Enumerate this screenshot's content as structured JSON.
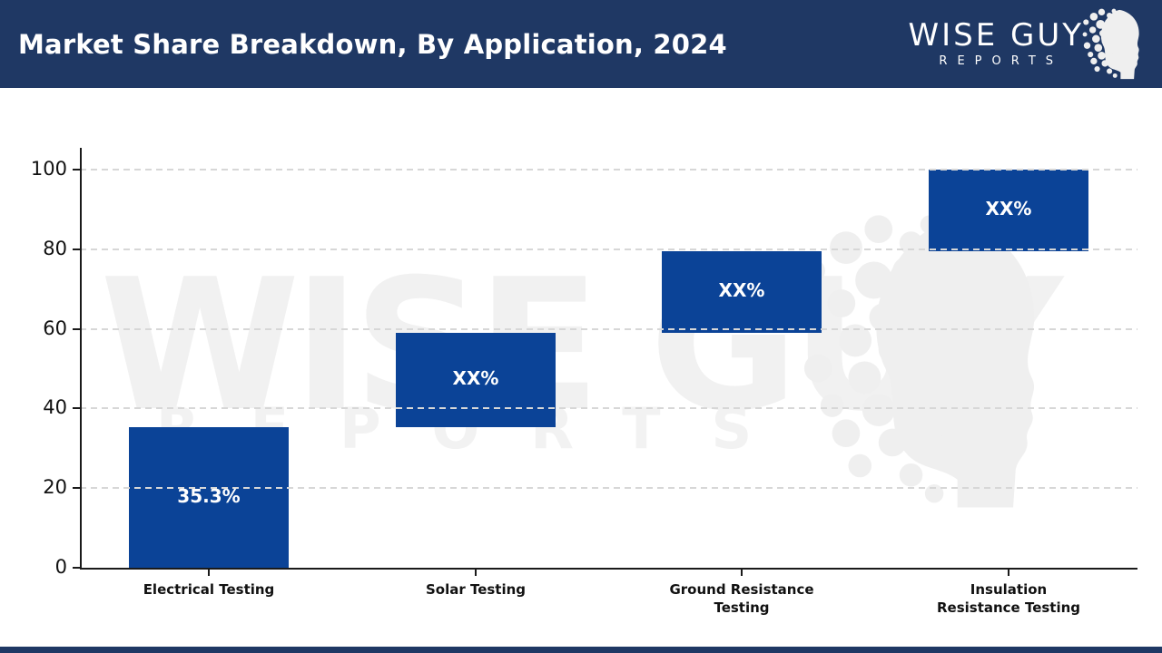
{
  "header": {
    "title": "Market Share Breakdown, By Application, 2024",
    "logo": {
      "line1": "WISE GUY",
      "line2": "REPORTS"
    }
  },
  "watermark": {
    "line1": "WISE GUY",
    "line2": "REPORTS"
  },
  "colors": {
    "header_bg": "#1f3864",
    "footer_bg": "#1f3864",
    "bar": "#0b4397",
    "grid": "#d7d7d7",
    "axis": "#1a1a1a",
    "bar_label": "#ffffff",
    "watermark": "#f1f1f1"
  },
  "chart_data": {
    "type": "bar",
    "variant": "waterfall",
    "title": "Market Share Breakdown, By Application, 2024",
    "categories": [
      "Electrical Testing",
      "Solar Testing",
      "Ground Resistance\nTesting",
      "Insulation\nResistance Testing"
    ],
    "segments": [
      {
        "category": "Electrical Testing",
        "start": 0,
        "end": 35.3,
        "label": "35.3%"
      },
      {
        "category": "Solar Testing",
        "start": 35.3,
        "end": 59,
        "label": "XX%"
      },
      {
        "category": "Ground Resistance Testing",
        "start": 59,
        "end": 79.5,
        "label": "XX%"
      },
      {
        "category": "Insulation Resistance Testing",
        "start": 79.5,
        "end": 100,
        "label": "XX%"
      }
    ],
    "yticks": [
      0,
      20,
      40,
      60,
      80,
      100
    ],
    "ylim": [
      0,
      105.5
    ],
    "xlabel": "",
    "ylabel": "",
    "grid": "horizontal-dashed",
    "legend": null
  }
}
